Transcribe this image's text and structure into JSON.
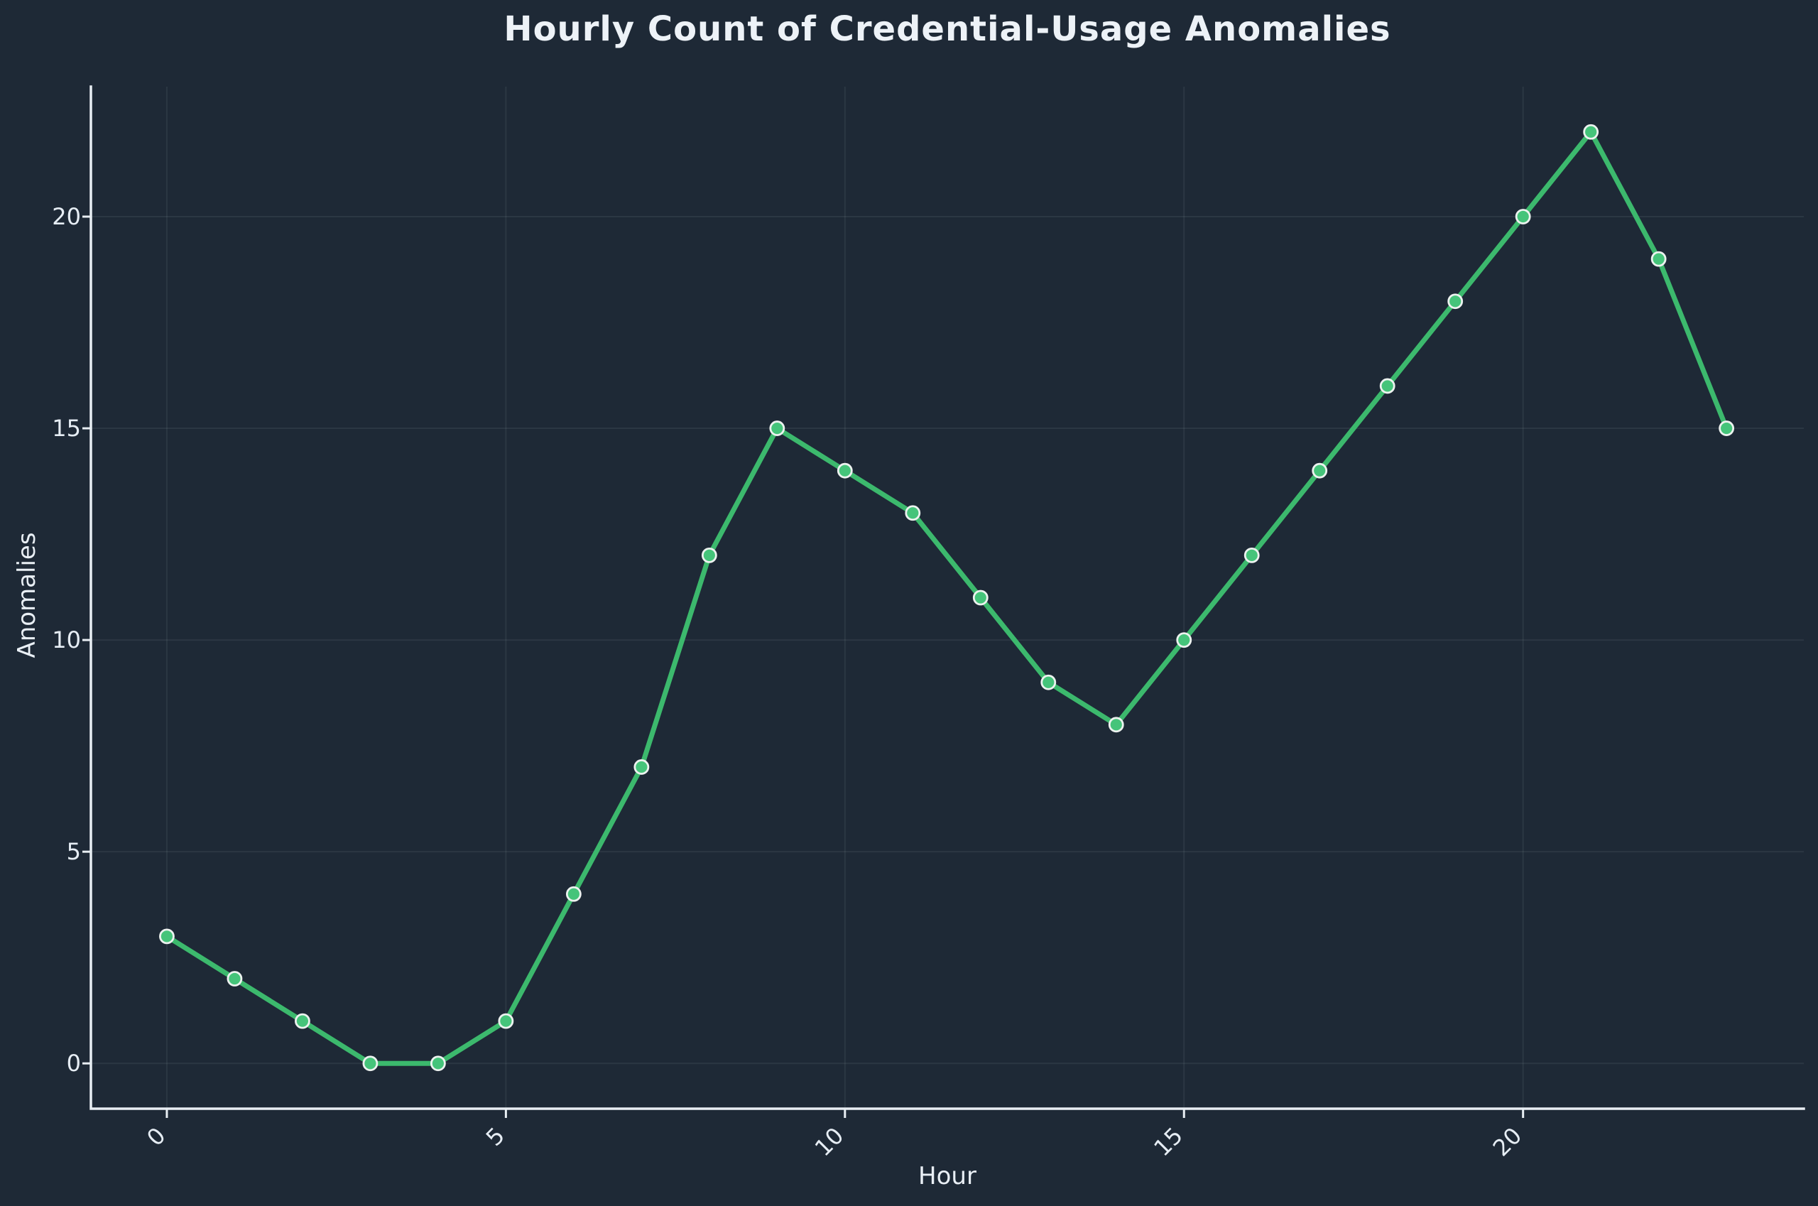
{
  "chart_data": {
    "type": "line",
    "title": "Hourly Count of Credential-Usage Anomalies",
    "xlabel": "Hour",
    "ylabel": "Anomalies",
    "x": [
      0,
      1,
      2,
      3,
      4,
      5,
      6,
      7,
      8,
      9,
      10,
      11,
      12,
      13,
      14,
      15,
      16,
      17,
      18,
      19,
      20,
      21,
      22,
      23
    ],
    "values": [
      3,
      2,
      1,
      0,
      0,
      1,
      4,
      7,
      12,
      15,
      14,
      13,
      11,
      9,
      8,
      10,
      12,
      14,
      16,
      18,
      20,
      22,
      19,
      15
    ],
    "xticks": [
      0,
      5,
      10,
      15,
      20
    ],
    "yticks": [
      0,
      5,
      10,
      15,
      20
    ],
    "xlim": [
      -1.12,
      24.14
    ],
    "ylim": [
      -1.07,
      23.07
    ],
    "grid": true,
    "legend": "none",
    "colors": {
      "background": "#1e2936",
      "line": "#3cb96d",
      "marker_fill": "#45c47a",
      "marker_edge": "#ecf2ef",
      "axis": "#e8eef3",
      "tick_text": "#e6edf4",
      "title_text": "#edf2f7",
      "grid": "rgba(231,238,245,0.07)"
    }
  }
}
